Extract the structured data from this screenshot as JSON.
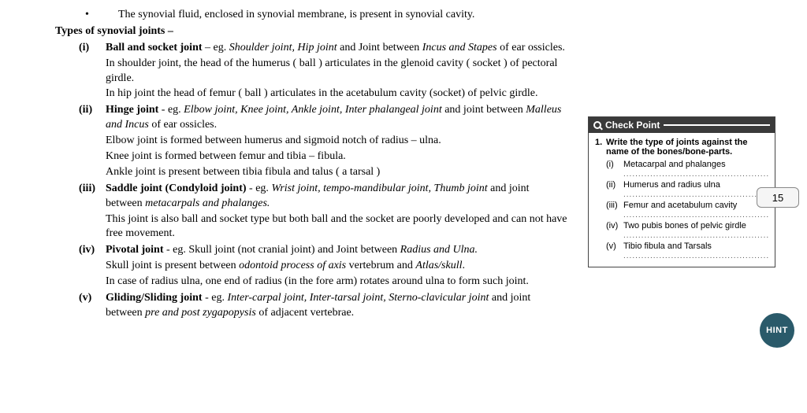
{
  "bullet": "The synovial fluid, enclosed in synovial membrane, is present in synovial cavity.",
  "types_header": "Types of synovial joints –",
  "items": [
    {
      "num": "(i)",
      "lead_bold": "Ball and socket joint",
      "lead_rest_1": " – eg. ",
      "lead_italic_1": "Shoulder joint, Hip joint",
      "lead_rest_2": " and Joint between ",
      "lead_italic_2": "Incus and Stapes",
      "lead_rest_3": " of ear ossicles.",
      "p1": "In shoulder joint, the head of the humerus ( ball ) articulates in the glenoid cavity ( socket ) of pectoral girdle.",
      "p2": "In hip joint the head of femur ( ball ) articulates in the acetabulum cavity (socket) of pelvic girdle."
    },
    {
      "num": "(ii)",
      "lead_bold": "Hinge joint",
      "lead_rest_1": " -  eg. ",
      "lead_italic_1": "Elbow joint, Knee joint, Ankle joint, Inter phalangeal joint",
      "lead_rest_2": " and joint between ",
      "lead_italic_2": "Malleus and Incus",
      "lead_rest_3": " of  ear ossicles.",
      "p1": "Elbow joint is formed between humerus and sigmoid notch of radius – ulna.",
      "p2": "Knee joint  is formed between femur and tibia – fibula.",
      "p3": "Ankle joint is present between tibia fibula and talus ( a tarsal )"
    },
    {
      "num": "(iii)",
      "lead_bold": "Saddle joint (Condyloid joint)",
      "lead_rest_1": " -  eg. ",
      "lead_italic_1": "Wrist joint, tempo-mandibular joint, Thumb joint",
      "lead_rest_2": " and joint between ",
      "lead_italic_2": "metacarpals and phalanges.",
      "lead_rest_3": "",
      "p1": "This joint is also ball and socket type but both ball and the socket are poorly developed and can not have free movement."
    },
    {
      "num": "(iv)",
      "lead_bold": "Pivotal joint",
      "lead_rest_1": " -  eg. Skull joint (not cranial joint) and Joint between ",
      "lead_italic_1": "Radius and Ulna.",
      "lead_rest_2": "",
      "lead_italic_2": "",
      "lead_rest_3": "",
      "p1_pre": "Skull joint is present between ",
      "p1_i": "odontoid process of axis",
      "p1_mid": " vertebrum and ",
      "p1_i2": "Atlas/skull",
      "p1_post": ".",
      "p2": "In case of radius ulna, one end of radius (in the fore arm) rotates around ulna to form such joint."
    },
    {
      "num": "(v)",
      "lead_bold": "Gliding/Sliding joint",
      "lead_rest_1": " -  eg. ",
      "lead_italic_1": "Inter-carpal joint, Inter-tarsal joint, Sterno-clavicular joint",
      "lead_rest_2": " and joint between ",
      "lead_italic_2": "pre and post zygapopysis",
      "lead_rest_3": " of adjacent vertebrae."
    }
  ],
  "checkpoint": {
    "header": "Check Point",
    "qnum": "1.",
    "qtext": "Write the type of joints against the name of the bones/bone-parts.",
    "options": [
      {
        "n": "(i)",
        "t": "Metacarpal and phalanges"
      },
      {
        "n": "(ii)",
        "t": "Humerus and radius ulna"
      },
      {
        "n": "(iii)",
        "t": "Femur and acetabulum cavity"
      },
      {
        "n": "(iv)",
        "t": "Two pubis bones of pelvic girdle"
      },
      {
        "n": "(v)",
        "t": "Tibio fibula and Tarsals"
      }
    ],
    "dots": "................................................."
  },
  "page_number": "15",
  "hint_label": "HINT"
}
